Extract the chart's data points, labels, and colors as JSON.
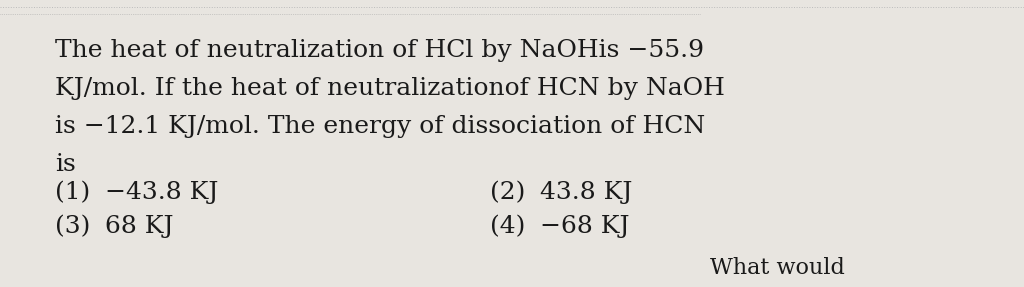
{
  "background_color": "#e8e5e0",
  "text_color": "#1a1a1a",
  "line1": "The heat of neutralization of HCl by NaOHis −55.9",
  "line2": "KJ/mol. If the heat of neutralizationof HCN by NaOH",
  "line3": "is −12.1 KJ/mol. The energy of dissociation of HCN",
  "line4": "is",
  "opt1_label": "(1)",
  "opt1_val": "−43.8 KJ",
  "opt2_label": "(2)",
  "opt2_val": "43.8 KJ",
  "opt3_label": "(3)",
  "opt3_val": "68 KJ",
  "opt4_label": "(4)",
  "opt4_val": "−68 KJ",
  "bottom_text": "What would",
  "font_size_main": 18,
  "font_size_options": 18,
  "top_line_color": "#aaaaaa",
  "top_line2_color": "#888888"
}
